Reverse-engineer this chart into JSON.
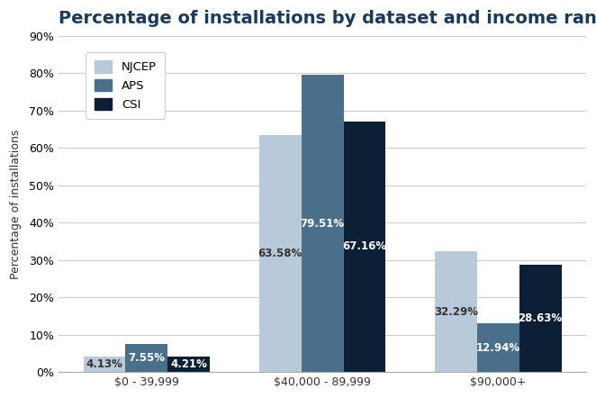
{
  "title": "Percentage of installations by dataset and income range",
  "categories": [
    "$0 - 39,999",
    "$40,000 - 89,999",
    "$90,000+"
  ],
  "series": {
    "NJCEP": [
      4.13,
      63.58,
      32.29
    ],
    "APS": [
      7.55,
      79.51,
      12.94
    ],
    "CSI": [
      4.21,
      67.16,
      28.63
    ]
  },
  "colors": {
    "NJCEP": "#b8c9d9",
    "APS": "#4a6f8a",
    "CSI": "#0d1f35"
  },
  "label_text_colors": {
    "NJCEP": "#333333",
    "APS": "#ffffff",
    "CSI": "#ffffff"
  },
  "ylabel": "Percentage of installations",
  "ylim": [
    0,
    90
  ],
  "yticks": [
    0,
    10,
    20,
    30,
    40,
    50,
    60,
    70,
    80,
    90
  ],
  "bar_width": 0.24,
  "label_fontsize": 8.5,
  "title_fontsize": 14,
  "title_color": "#1a3a5c",
  "axis_fontsize": 9,
  "legend_fontsize": 9.5,
  "background_color": "#ffffff",
  "grid_color": "#cccccc"
}
